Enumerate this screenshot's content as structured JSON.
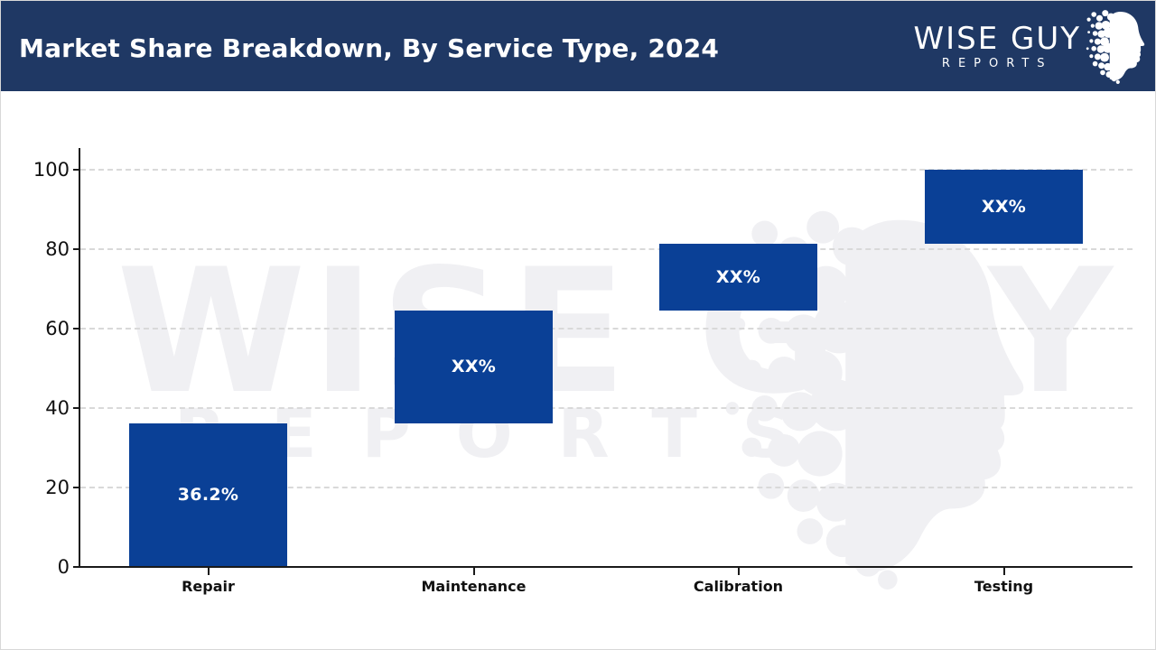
{
  "header": {
    "title": "Market Share Breakdown, By Service Type, 2024",
    "bg_color": "#1f3864",
    "logo": {
      "line1": "WISE GUY",
      "line2": "REPORTS"
    }
  },
  "watermark": {
    "line1": "WISE GUY",
    "line2": "REPORTS"
  },
  "chart_data": {
    "type": "bar",
    "subtype": "waterfall",
    "title": "Market Share Breakdown, By Service Type, 2024",
    "categories": [
      "Repair",
      "Maintenance",
      "Calibration",
      "Testing"
    ],
    "bars": [
      {
        "category": "Repair",
        "start": 0,
        "end": 36.2,
        "label": "36.2%"
      },
      {
        "category": "Maintenance",
        "start": 36.2,
        "end": 64.5,
        "label": "XX%"
      },
      {
        "category": "Calibration",
        "start": 64.5,
        "end": 81.4,
        "label": "XX%"
      },
      {
        "category": "Testing",
        "start": 81.4,
        "end": 100,
        "label": "XX%"
      }
    ],
    "yticks": [
      0,
      20,
      40,
      60,
      80,
      100
    ],
    "ylim": [
      0,
      105
    ],
    "xlabel": "",
    "ylabel": "",
    "grid": "horizontal-dashed",
    "legend": "none",
    "bar_color": "#0a4096",
    "bar_label_color": "#ffffff",
    "axis_color": "#1a1a1a",
    "gridline_color": "#d9d9d9"
  }
}
